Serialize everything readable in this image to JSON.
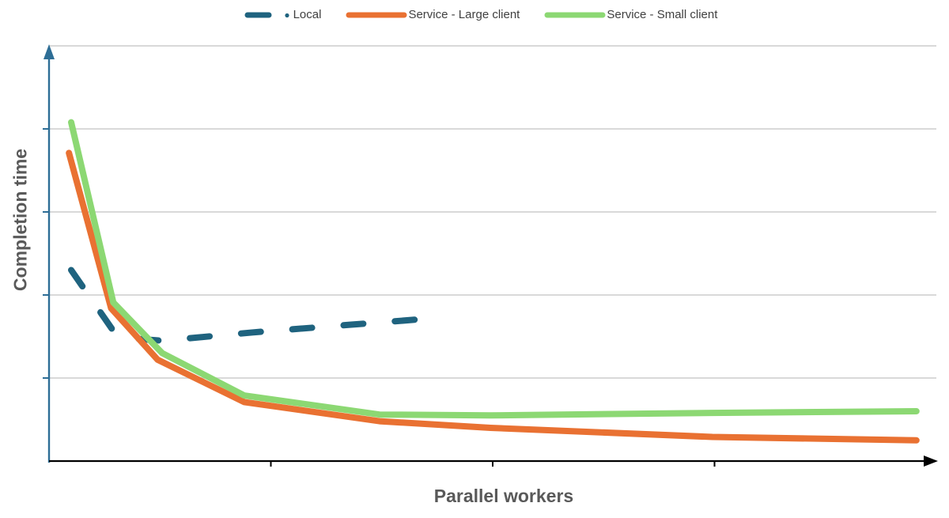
{
  "chart_data": {
    "type": "line",
    "title": "",
    "xlabel": "Parallel workers",
    "ylabel": "Completion time",
    "note": "Axis tick labels are not shown in the chart; point coordinates below are in relative axis units (x: one x-tick interval = 1, y: one gridline interval = 1, origin at axes crossing).",
    "x_axis": {
      "tick_labels_visible": false,
      "ticks_rel": [
        1,
        2,
        3
      ],
      "range_rel": [
        0,
        4.2
      ],
      "color": "#000000"
    },
    "y_axis": {
      "tick_labels_visible": false,
      "ticks_rel": [
        1,
        2,
        3,
        4
      ],
      "gridlines_rel": [
        1,
        2,
        3,
        4,
        5
      ],
      "range_rel": [
        0,
        5
      ],
      "color": "#2E6E96"
    },
    "grid": {
      "visible": true,
      "color": "#D9D9D9"
    },
    "legend": {
      "position": "top-center"
    },
    "series": [
      {
        "name": "Local",
        "color": "#1F637F",
        "style": "dashed",
        "points": [
          [
            0.1,
            2.3
          ],
          [
            0.31,
            1.49
          ],
          [
            0.51,
            1.45
          ],
          [
            0.92,
            1.55
          ],
          [
            1.35,
            1.64
          ],
          [
            1.78,
            1.73
          ]
        ]
      },
      {
        "name": "Service - Large client",
        "color": "#E97132",
        "style": "solid",
        "points": [
          [
            0.09,
            3.71
          ],
          [
            0.28,
            1.84
          ],
          [
            0.49,
            1.22
          ],
          [
            0.88,
            0.71
          ],
          [
            1.49,
            0.48
          ],
          [
            1.99,
            0.4
          ],
          [
            2.99,
            0.29
          ],
          [
            3.91,
            0.25
          ]
        ]
      },
      {
        "name": "Service - Small client",
        "color": "#8CD873",
        "style": "solid",
        "points": [
          [
            0.1,
            4.08
          ],
          [
            0.29,
            1.91
          ],
          [
            0.51,
            1.3
          ],
          [
            0.88,
            0.79
          ],
          [
            1.49,
            0.56
          ],
          [
            1.99,
            0.55
          ],
          [
            2.99,
            0.58
          ],
          [
            3.91,
            0.6
          ]
        ]
      }
    ],
    "style": {
      "series_stroke_width": 8,
      "dash_pattern": "25 40",
      "legend_text_color": "#404040",
      "axis_title_color": "#595959"
    }
  }
}
